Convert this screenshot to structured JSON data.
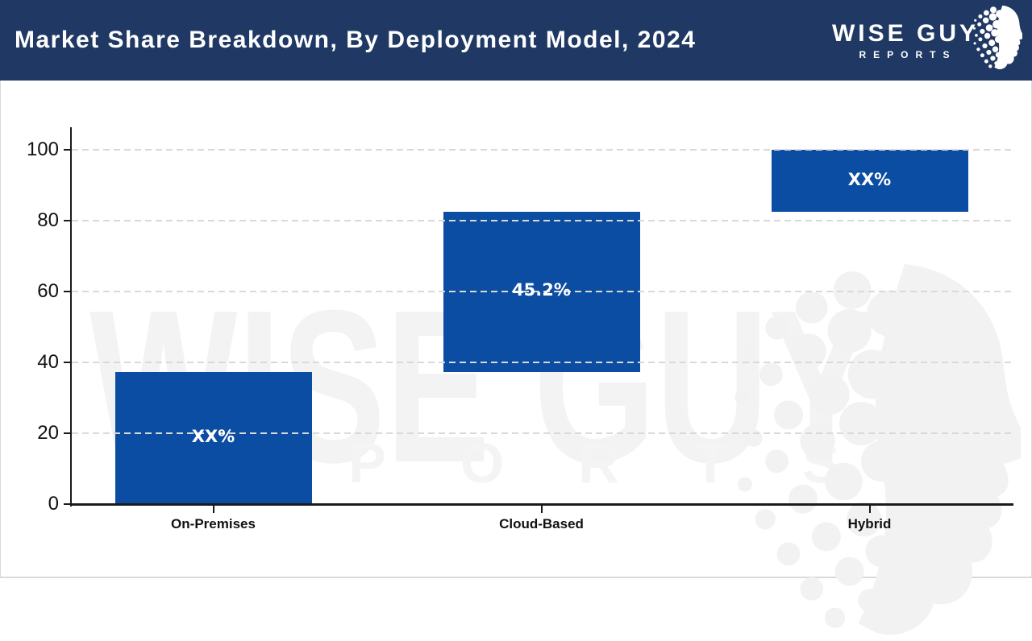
{
  "header": {
    "title": "Market Share Breakdown, By Deployment Model, 2024",
    "brand": {
      "line1": "WISE GUY",
      "line2": "REPORTS"
    }
  },
  "watermark": {
    "line1": "WISE GUY",
    "line2": "REPORTS"
  },
  "chart_data": {
    "type": "bar",
    "subtype": "waterfall",
    "title": "Market Share Breakdown, By Deployment Model, 2024",
    "categories": [
      "On-Premises",
      "Cloud-Based",
      "Hybrid"
    ],
    "bars": [
      {
        "category": "On-Premises",
        "label": "XX%",
        "start": 0,
        "end": 37.3
      },
      {
        "category": "Cloud-Based",
        "label": "45.2%",
        "start": 37.3,
        "end": 82.5
      },
      {
        "category": "Hybrid",
        "label": "XX%",
        "start": 82.5,
        "end": 100
      }
    ],
    "values": [
      37.3,
      45.2,
      17.5
    ],
    "xlabel": "",
    "ylabel": "",
    "yticks": [
      0,
      20,
      40,
      60,
      80,
      100
    ],
    "ylim": [
      0,
      105
    ],
    "grid": "horizontal dashed, drawn above bars",
    "legend": "none",
    "bar_color": "#0B4DA2",
    "gridline_color": "#D9D9D9",
    "axis_color": "#1A1A1A",
    "header_bg_color": "#1F3864",
    "watermark_color": "#F2F2F2"
  }
}
